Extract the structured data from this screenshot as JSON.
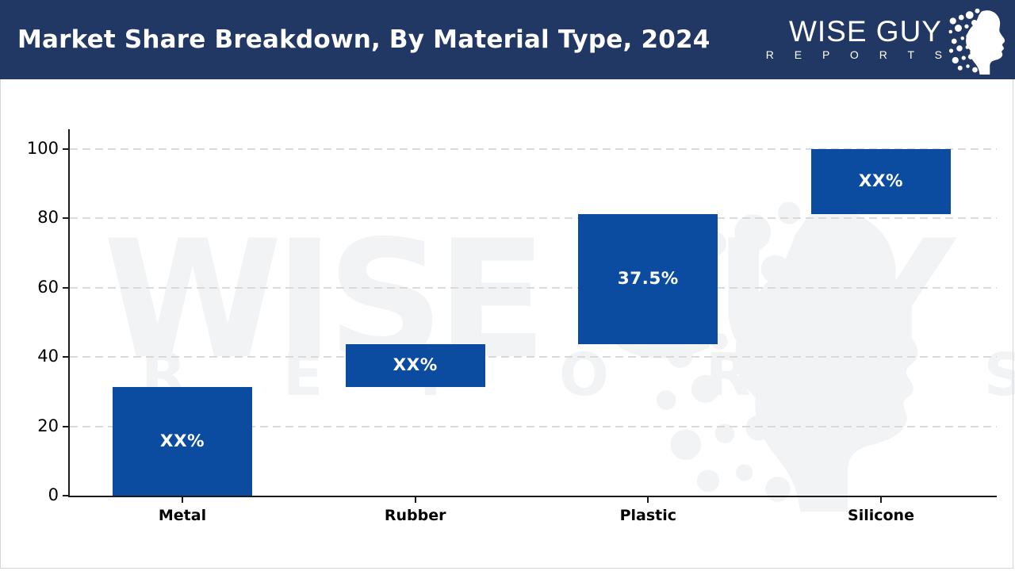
{
  "header": {
    "title": "Market Share Breakdown, By Material Type, 2024",
    "logo": {
      "wordmark": "WISE GUY",
      "subtext": "R E P O R T S"
    }
  },
  "watermark": {
    "wordmark": "WISE GUY",
    "subtext": "R E P O R T S"
  },
  "colors": {
    "header_bg": "#223864",
    "bar_blue": "#0b4ca1",
    "watermark_gray": "#f2f3f5",
    "grid_gray": "#dadada"
  },
  "chart_data": {
    "type": "bar",
    "subtype": "waterfall",
    "title": "Market Share Breakdown, By Material Type, 2024",
    "categories": [
      "Metal",
      "Rubber",
      "Plastic",
      "Silicone"
    ],
    "bars": [
      {
        "category": "Metal",
        "start": 0,
        "end": 31.25,
        "label": "XX%"
      },
      {
        "category": "Rubber",
        "start": 31.25,
        "end": 43.75,
        "label": "XX%"
      },
      {
        "category": "Plastic",
        "start": 43.75,
        "end": 81.25,
        "label": "37.5%"
      },
      {
        "category": "Silicone",
        "start": 81.25,
        "end": 100,
        "label": "XX%"
      }
    ],
    "yticks": [
      0,
      20,
      40,
      60,
      80,
      100
    ],
    "ylim": [
      0,
      105.6
    ],
    "grid": "dashed-horizontal",
    "legend": "none",
    "bar_color": "#0b4ca1",
    "label_color": "#ffffff"
  }
}
